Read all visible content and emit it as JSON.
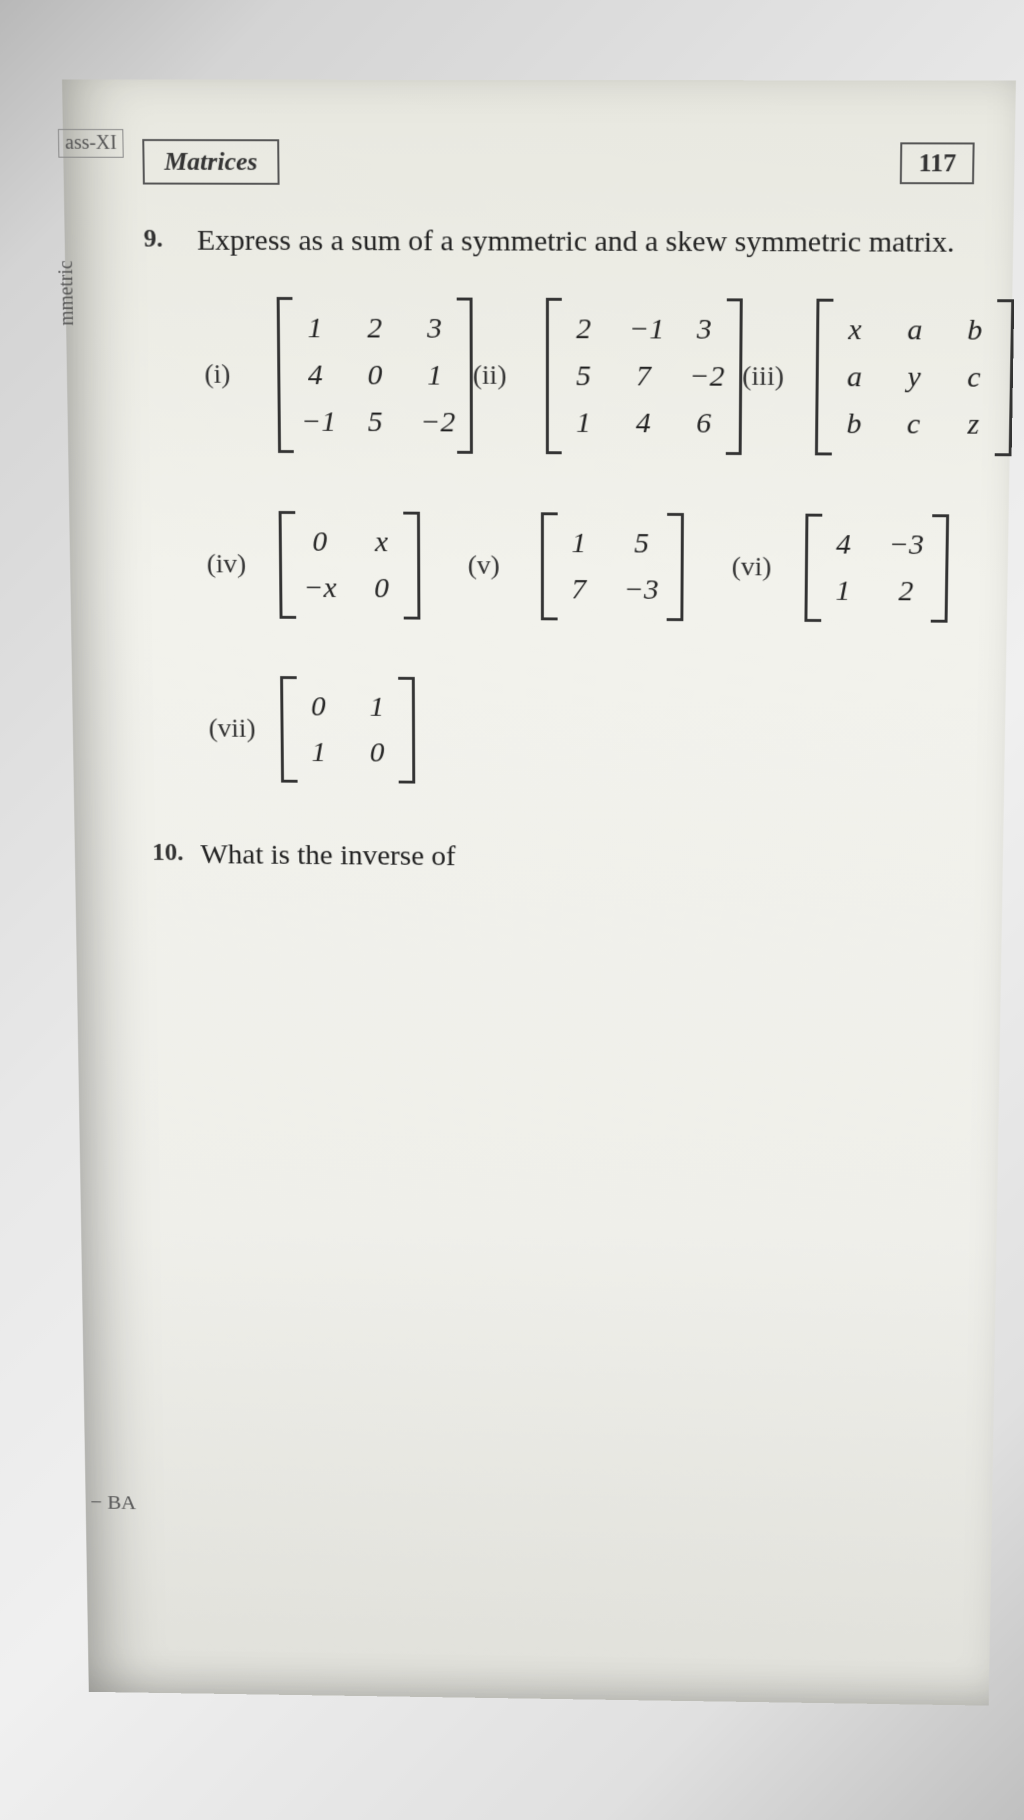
{
  "header": {
    "chapter_title": "Matrices",
    "page_number": "117"
  },
  "spine_annotations": {
    "top": "ass-XI",
    "middle": "mmetric",
    "bottom": "− BA "
  },
  "question9": {
    "number": "9.",
    "text": "Express as a sum of a symmetric and a skew symmetric matrix.",
    "items": [
      {
        "label": "(i)",
        "cols": 3,
        "cells": [
          "1",
          "2",
          "3",
          "4",
          "0",
          "1",
          "−1",
          "5",
          "−2"
        ]
      },
      {
        "label": "(ii)",
        "cols": 3,
        "cells": [
          "2",
          "−1",
          "3",
          "5",
          "7",
          "−2",
          "1",
          "4",
          "6"
        ]
      },
      {
        "label": "(iii)",
        "cols": 3,
        "cells": [
          "x",
          "a",
          "b",
          "a",
          "y",
          "c",
          "b",
          "c",
          "z"
        ]
      },
      {
        "label": "(iv)",
        "cols": 2,
        "cells": [
          "0",
          "x",
          "−x",
          "0"
        ]
      },
      {
        "label": "(v)",
        "cols": 2,
        "cells": [
          "1",
          "5",
          "7",
          "−3"
        ]
      },
      {
        "label": "(vi)",
        "cols": 2,
        "cells": [
          "4",
          "−3",
          "1",
          "2"
        ]
      },
      {
        "label": "(vii)",
        "cols": 2,
        "cells": [
          "0",
          "1",
          "1",
          "0"
        ]
      }
    ]
  },
  "question10": {
    "number": "10.",
    "text": "What is the inverse of"
  },
  "style": {
    "font_family": "Times New Roman",
    "title_fontsize": 26,
    "body_fontsize": 30,
    "matrix_fontsize": 30,
    "text_color": "#222",
    "border_color": "#555",
    "page_bg_colors": [
      "#e8e8e0",
      "#f2f2ec",
      "#e0e0da"
    ]
  }
}
